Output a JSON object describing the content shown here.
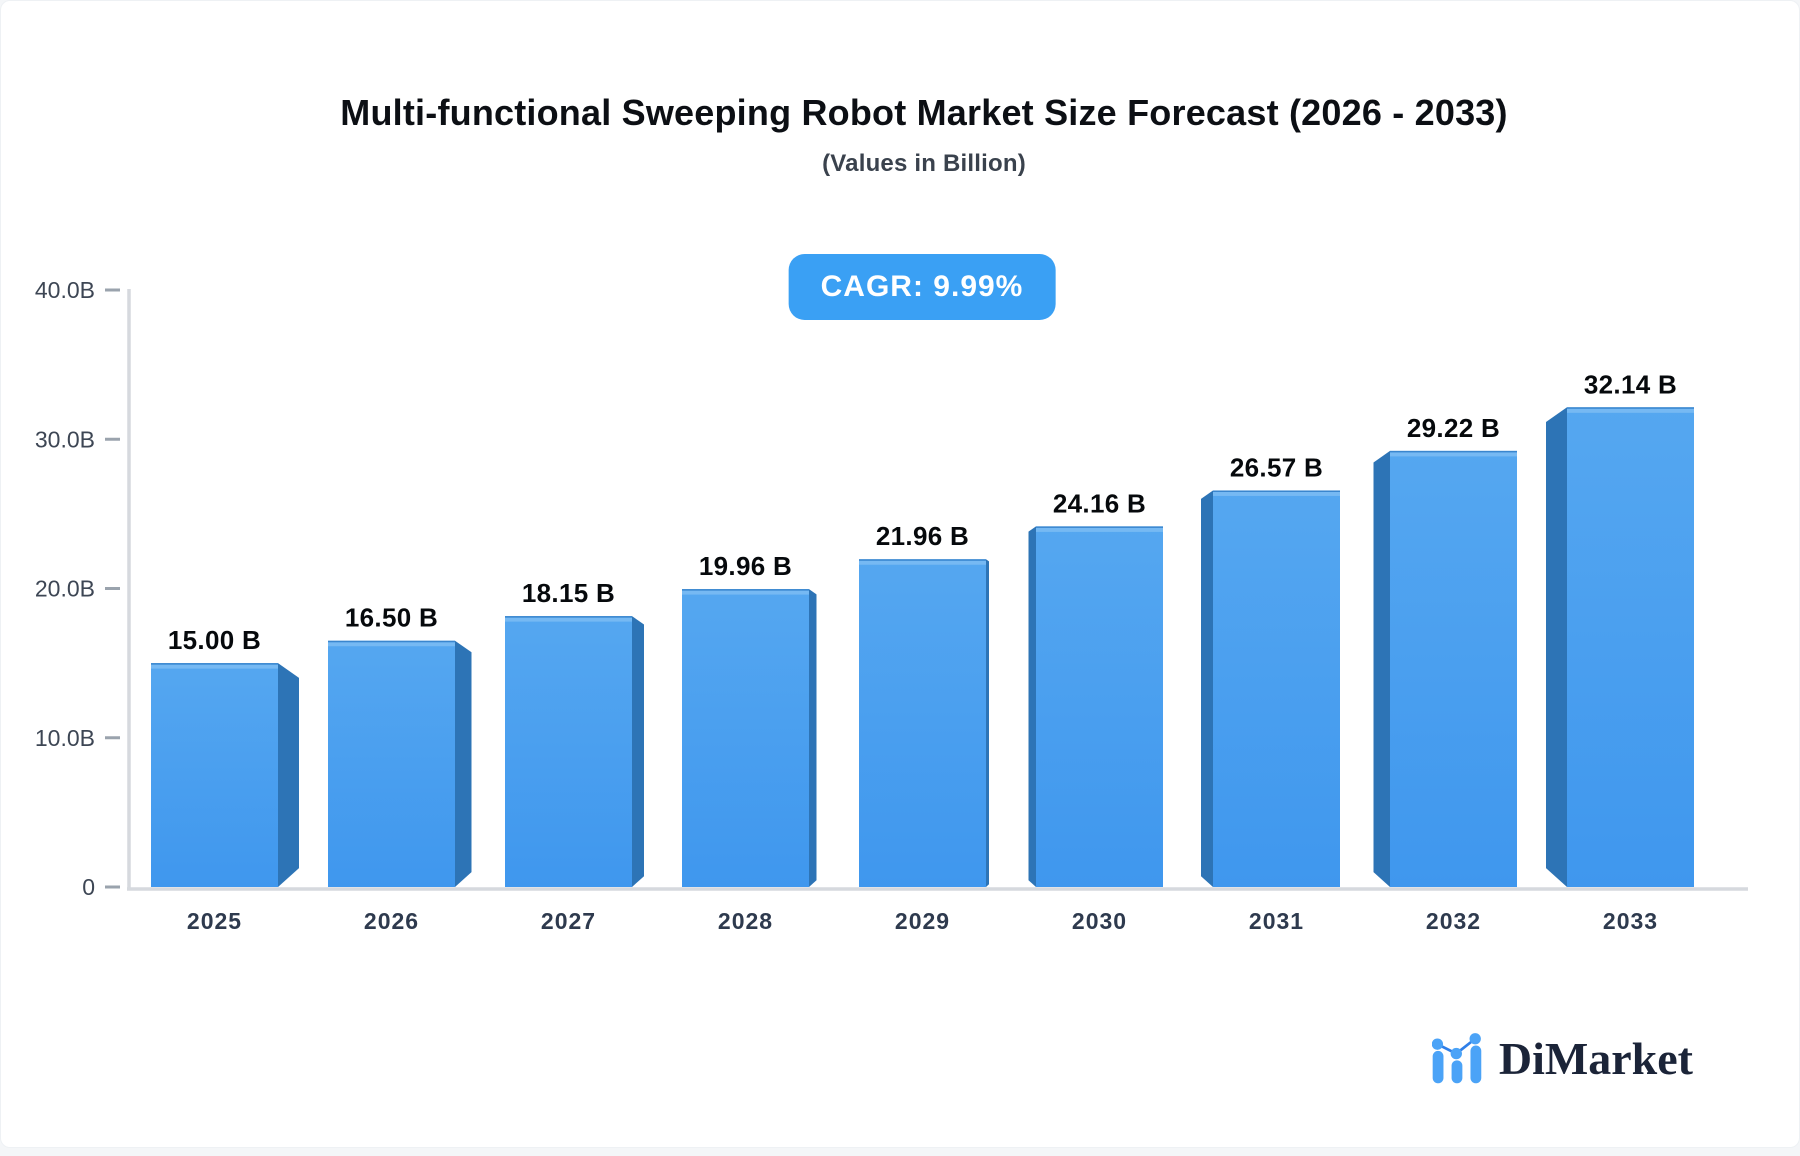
{
  "header": {
    "title": "Multi-functional Sweeping Robot Market Size Forecast (2026 - 2033)",
    "subtitle": "(Values in Billion)",
    "cagr_badge": "CAGR: 9.99%"
  },
  "chart_data": {
    "type": "bar",
    "title": "Multi-functional Sweeping Robot Market Size Forecast (2026 - 2033)",
    "subtitle": "(Values in Billion)",
    "categories": [
      "2025",
      "2026",
      "2027",
      "2028",
      "2029",
      "2030",
      "2031",
      "2032",
      "2033"
    ],
    "values": [
      15.0,
      16.5,
      18.15,
      19.96,
      21.96,
      24.16,
      26.57,
      29.22,
      32.14
    ],
    "bar_labels": [
      "15.00 B",
      "16.50 B",
      "18.15 B",
      "19.96 B",
      "21.96 B",
      "24.16 B",
      "26.57 B",
      "29.22 B",
      "32.14 B"
    ],
    "cagr_percent": "9.99%",
    "xlabel": "",
    "ylabel": "",
    "ylim": [
      0,
      40
    ],
    "yticks": [
      {
        "value": 0,
        "label": "0"
      },
      {
        "value": 10,
        "label": "10.0B"
      },
      {
        "value": 20,
        "label": "20.0B"
      },
      {
        "value": 30,
        "label": "30.0B"
      },
      {
        "value": 40,
        "label": "40.0B"
      }
    ],
    "grid": false,
    "legend": false,
    "style": "pseudo-3d perspective bars, vanishing point at chart center",
    "colors": {
      "bar_front_top": "#55a7f0",
      "bar_front_bottom": "#3f97ee",
      "bar_top_strip": "#76b9f3",
      "bar_top_hairline": "#3a86ce",
      "bar_side": "#2d74b6",
      "axis_line": "#d6d9de",
      "tick_dash": "#9aa3ad",
      "ytick_text": "#3d4654",
      "year_text": "#2e3a4e",
      "value_text": "#06090c",
      "badge_bg": "#3aa0f4",
      "badge_text": "#ffffff"
    }
  },
  "branding": {
    "logo_text": "DiMarket",
    "logo_icon": "bar-chart-with-trend-dots",
    "logo_text_color": "#1b2438",
    "logo_icon_color": "#4ba3f7"
  }
}
